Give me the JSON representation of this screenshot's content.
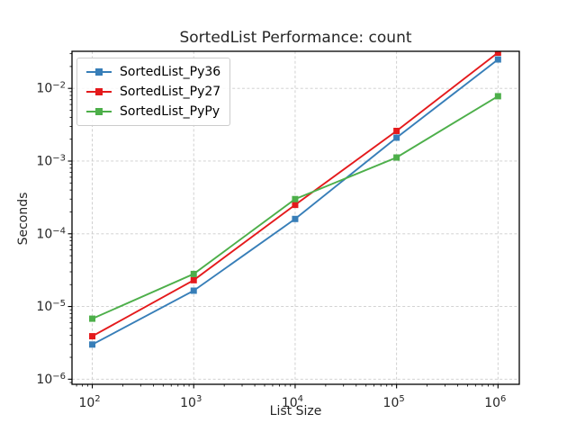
{
  "title": "SortedList Performance: count",
  "chart_data": {
    "type": "line",
    "title": "SortedList Performance: count",
    "xlabel": "List Size",
    "ylabel": "Seconds",
    "x_scale": "log",
    "y_scale": "log",
    "grid": true,
    "legend_position": "upper left",
    "marker": "square",
    "x": [
      100,
      1000,
      10000,
      100000,
      1000000
    ],
    "series": [
      {
        "name": "SortedList_Py36",
        "color": "#377eb8",
        "values": [
          3e-06,
          1.65e-05,
          0.00016,
          0.0021,
          0.025
        ]
      },
      {
        "name": "SortedList_Py27",
        "color": "#e41a1c",
        "values": [
          3.9e-06,
          2.3e-05,
          0.00025,
          0.0026,
          0.031
        ]
      },
      {
        "name": "SortedList_PyPy",
        "color": "#4daf4a",
        "values": [
          6.8e-06,
          2.8e-05,
          0.0003,
          0.00112,
          0.0078
        ]
      }
    ],
    "x_tick_exponents": [
      2,
      3,
      4,
      5,
      6
    ],
    "y_tick_exponents": [
      -2,
      -3,
      -4,
      -5,
      -6
    ],
    "xlim_log": [
      1.8,
      6.21
    ],
    "ylim_log": [
      -6.07,
      -1.49
    ],
    "grid_color": "#cccccc",
    "spine_color": "#000000",
    "text_color": "#262626"
  }
}
